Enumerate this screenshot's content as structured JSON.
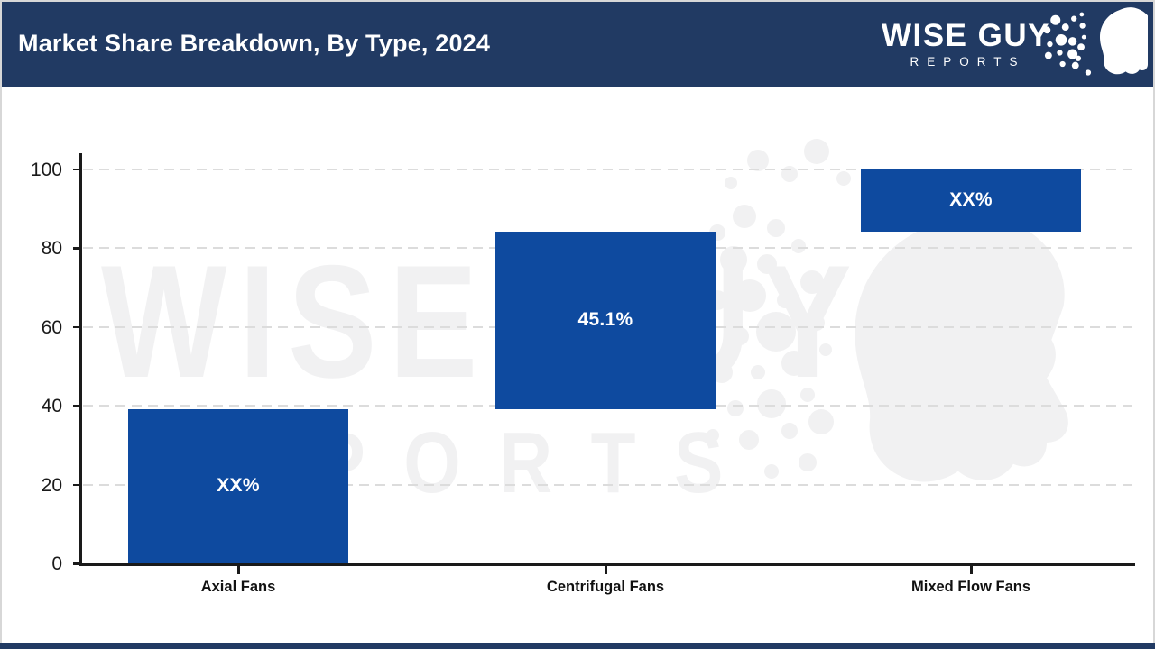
{
  "header": {
    "title": "Market Share Breakdown, By Type, 2024",
    "logo": {
      "wordmark": "WISE GUY",
      "subtext": "REPORTS"
    }
  },
  "watermark": {
    "line1": "WISE GUY",
    "line2": "REPORTS"
  },
  "colors": {
    "header_bg": "#213a63",
    "footer_bg": "#213a63",
    "bar_fill": "#0e4a9f",
    "gridline": "#dcdcdc",
    "axis_text": "#1a1a1a",
    "watermark": "#f1f1f2",
    "frame_border": "#d7d7d7"
  },
  "chart_data": {
    "type": "bar",
    "variant": "floating-stacked-percentage",
    "title": "Market Share Breakdown, By Type, 2024",
    "categories": [
      "Axial Fans",
      "Centrifugal Fans",
      "Mixed Flow Fans"
    ],
    "segments": [
      {
        "category": "Axial Fans",
        "from": 0,
        "to": 39.1,
        "label": "XX%"
      },
      {
        "category": "Centrifugal Fans",
        "from": 39.1,
        "to": 84.2,
        "label": "45.1%"
      },
      {
        "category": "Mixed Flow Fans",
        "from": 84.2,
        "to": 100,
        "label": "XX%"
      }
    ],
    "values_displayed": [
      "XX%",
      "45.1%",
      "XX%"
    ],
    "yticks": [
      0,
      20,
      40,
      60,
      80,
      100
    ],
    "ylim": [
      0,
      105
    ],
    "grid": "horizontal-dashed",
    "legend": false,
    "xlabel": "",
    "ylabel": ""
  }
}
